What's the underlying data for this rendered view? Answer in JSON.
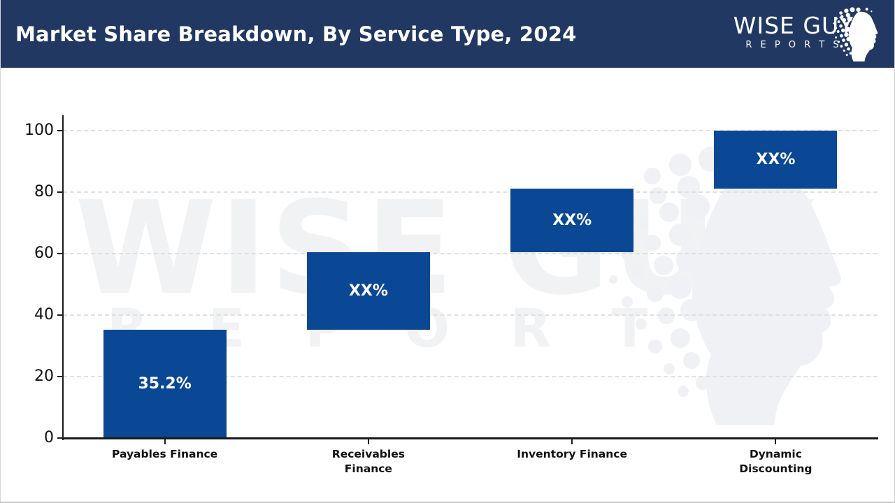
{
  "header": {
    "title": "Market Share Breakdown, By Service Type, 2024",
    "logo": {
      "line1": "WISE GUY",
      "line2": "R E P O R T S"
    }
  },
  "watermark": {
    "line1": "WISE GUY",
    "line2": "R E P O R T S"
  },
  "chart_data": {
    "type": "bar",
    "subtype": "floating-waterfall",
    "title": "Market Share Breakdown, By Service Type, 2024",
    "categories": [
      "Payables Finance",
      "Receivables\nFinance",
      "Inventory Finance",
      "Dynamic\nDiscounting"
    ],
    "bars": [
      {
        "category": "Payables Finance",
        "start": 0,
        "end": 35.2,
        "label": "35.2%"
      },
      {
        "category": "Receivables Finance",
        "start": 35.2,
        "end": 60.5,
        "label": "XX%"
      },
      {
        "category": "Inventory Finance",
        "start": 60.5,
        "end": 81.3,
        "label": "XX%"
      },
      {
        "category": "Dynamic Discounting",
        "start": 81.3,
        "end": 100,
        "label": "XX%"
      }
    ],
    "ylim": [
      0,
      104.5
    ],
    "yticks": [
      0,
      20,
      40,
      60,
      80,
      100
    ],
    "xlabel": "",
    "ylabel": "",
    "grid": "horizontal-dashed",
    "legend": "none",
    "colors": {
      "bar": "#0a4795",
      "bar_label": "#ffffff",
      "grid": "#e0e0e0",
      "axis": "#1a1a1a",
      "tick_label": "#111111"
    }
  },
  "colors": {
    "header_bg": "#213862",
    "page_bg": "#ffffff",
    "watermark": "#f1f2f4",
    "border": "#c9c9c9"
  }
}
